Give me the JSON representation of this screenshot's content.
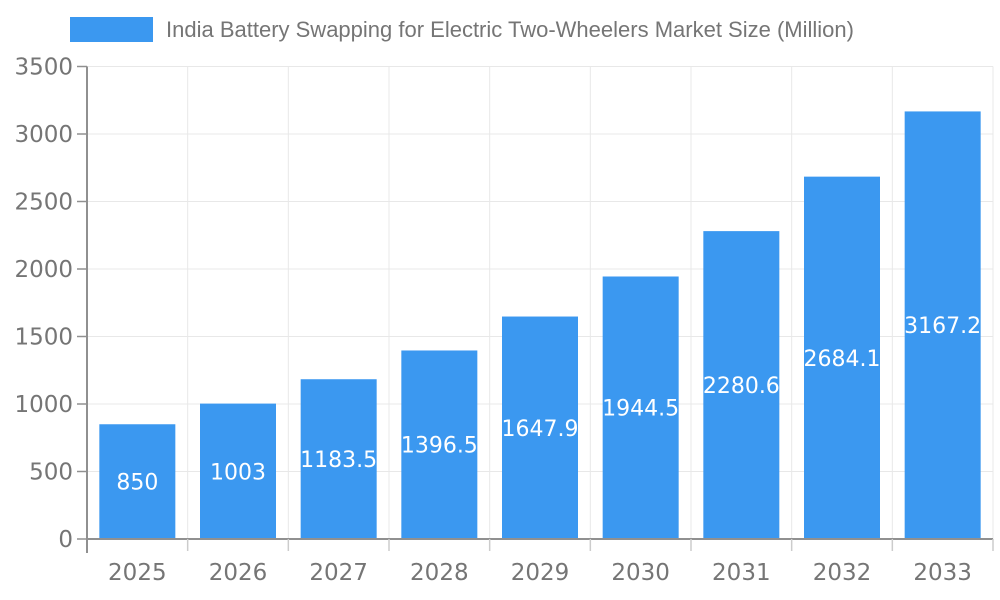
{
  "legend": {
    "label": "India Battery Swapping for Electric Two-Wheelers Market Size (Million)"
  },
  "colors": {
    "bar": "#3b98f0",
    "grid": "#e8e8e8",
    "axis": "#909090",
    "tick": "#cccccc",
    "axis_text": "#757575",
    "value_label_text": "#ffffff",
    "background": "#ffffff"
  },
  "chart_data": {
    "type": "bar",
    "title": "India Battery Swapping for Electric Two-Wheelers Market Size (Million)",
    "series_name": "India Battery Swapping for Electric Two-Wheelers Market Size (Million)",
    "categories": [
      "2025",
      "2026",
      "2027",
      "2028",
      "2029",
      "2030",
      "2031",
      "2032",
      "2033"
    ],
    "values": [
      850,
      1003,
      1183.5,
      1396.5,
      1647.9,
      1944.5,
      2280.6,
      2684.1,
      3167.2
    ],
    "value_labels": [
      "850",
      "1003",
      "1183.5",
      "1396.5",
      "1647.9",
      "1944.5",
      "2280.6",
      "2684.1",
      "3167.2"
    ],
    "xlabel": "",
    "ylabel": "",
    "ylim": [
      0,
      3500
    ],
    "yticks": [
      0,
      500,
      1000,
      1500,
      2000,
      2500,
      3000,
      3500
    ],
    "grid": true,
    "legend_position": "top",
    "value_label_position": "inside-center"
  }
}
